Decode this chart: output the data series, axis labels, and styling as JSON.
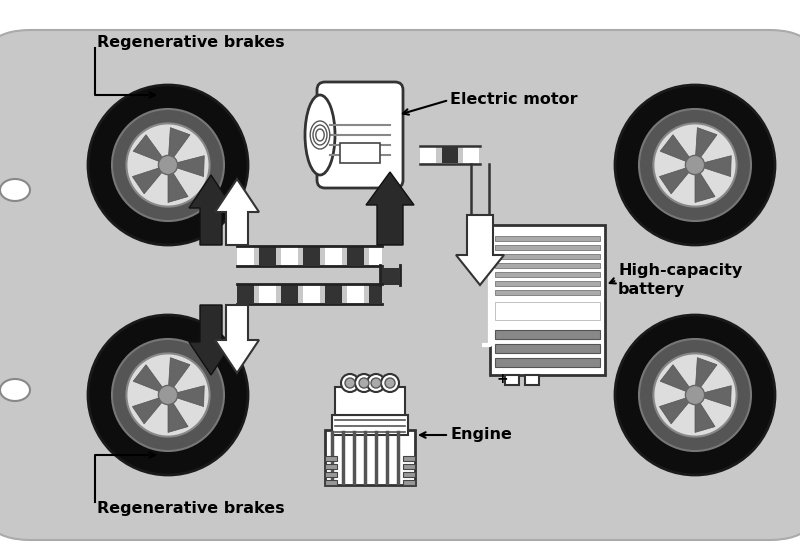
{
  "background_color": "#ffffff",
  "car_body_color": "#c8c8c8",
  "tire_outer_color": "#111111",
  "tire_inner_color": "#666666",
  "hub_color": "#bbbbbb",
  "arrow_dark": "#333333",
  "arrow_light": "#ffffff",
  "pipe_dark": "#333333",
  "pipe_light": "#ffffff",
  "labels": {
    "reg_brakes_top": "Regenerative brakes",
    "reg_brakes_bottom": "Regenerative brakes",
    "engine": "Engine",
    "battery": "High-capacity\nbattery",
    "motor": "Electric motor"
  },
  "label_fontsize": 11.5,
  "figsize": [
    8.0,
    5.5
  ],
  "dpi": 100
}
